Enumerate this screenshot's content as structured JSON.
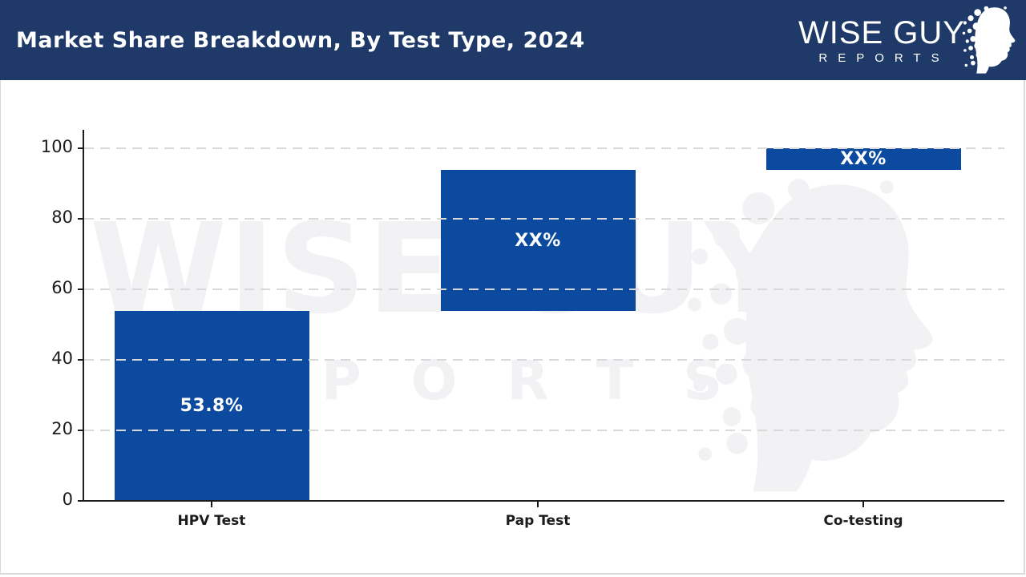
{
  "header": {
    "title": "Market Share Breakdown, By Test Type, 2024",
    "logo": {
      "line1": "WISE GUY",
      "line2": "REPORTS"
    },
    "bg_color": "#1f3a68"
  },
  "watermark": {
    "line1": "WISE GUY",
    "line2": "REPORTS"
  },
  "chart_data": {
    "type": "bar",
    "subtype": "waterfall-stacked-segments",
    "title": "Market Share Breakdown, By Test Type, 2024",
    "categories": [
      "HPV Test",
      "Pap Test",
      "Co-testing"
    ],
    "series": [
      {
        "name": "Market Share (%)",
        "segments": [
          {
            "category": "HPV Test",
            "start": 0,
            "end": 53.8,
            "value": 53.8,
            "label": "53.8%"
          },
          {
            "category": "Pap Test",
            "start": 53.8,
            "end": 93.8,
            "value": 40.0,
            "label": "XX%"
          },
          {
            "category": "Co-testing",
            "start": 93.8,
            "end": 100,
            "value": 6.2,
            "label": "XX%"
          }
        ]
      }
    ],
    "xlabel": "",
    "ylabel": "",
    "ylim": [
      0,
      105
    ],
    "yticks": [
      0,
      20,
      40,
      60,
      80,
      100
    ],
    "grid": "horizontal-dashed",
    "legend": "none",
    "bar_color": "#0b4a9e",
    "grid_color": "#d9d9d9",
    "axis_color": "#1c1c1c",
    "label_color": "#ffffff"
  }
}
